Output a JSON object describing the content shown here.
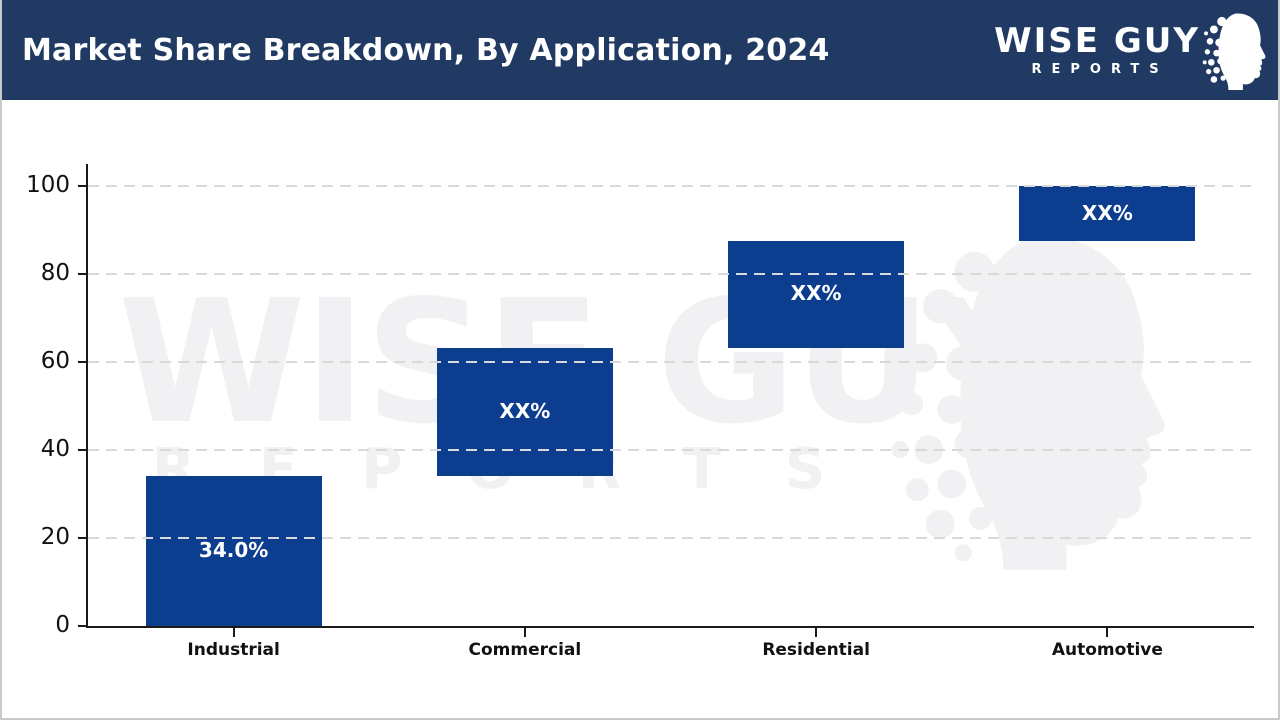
{
  "header": {
    "title": "Market Share Breakdown, By Application, 2024",
    "logo": {
      "brand": "WISE GUY",
      "subbrand": "REPORTS"
    }
  },
  "watermark": {
    "brand": "WISE GUY",
    "subbrand": "REPORTS"
  },
  "colors": {
    "header_bg": "#213a64",
    "bar": "#0c3d8f",
    "axis": "#1a1a1a",
    "gridline": "#d9d9d9",
    "bar_label": "#ffffff",
    "watermark": "#f1f1f4"
  },
  "chart_data": {
    "type": "bar",
    "subtype": "waterfall",
    "title": "Market Share Breakdown, By Application, 2024",
    "categories": [
      "Industrial",
      "Commercial",
      "Residential",
      "Automotive"
    ],
    "segments": [
      {
        "category": "Industrial",
        "label": "34.0%",
        "start": 0,
        "end": 34.0
      },
      {
        "category": "Commercial",
        "label": "XX%",
        "start": 34.0,
        "end": 63.2
      },
      {
        "category": "Residential",
        "label": "XX%",
        "start": 63.2,
        "end": 87.5
      },
      {
        "category": "Automotive",
        "label": "XX%",
        "start": 87.5,
        "end": 100.0
      }
    ],
    "yticks": [
      0,
      20,
      40,
      60,
      80,
      100
    ],
    "ylim": [
      0,
      105
    ],
    "xlabel": "",
    "ylabel": "",
    "grid": "horizontal-dashed",
    "legend": "none"
  }
}
